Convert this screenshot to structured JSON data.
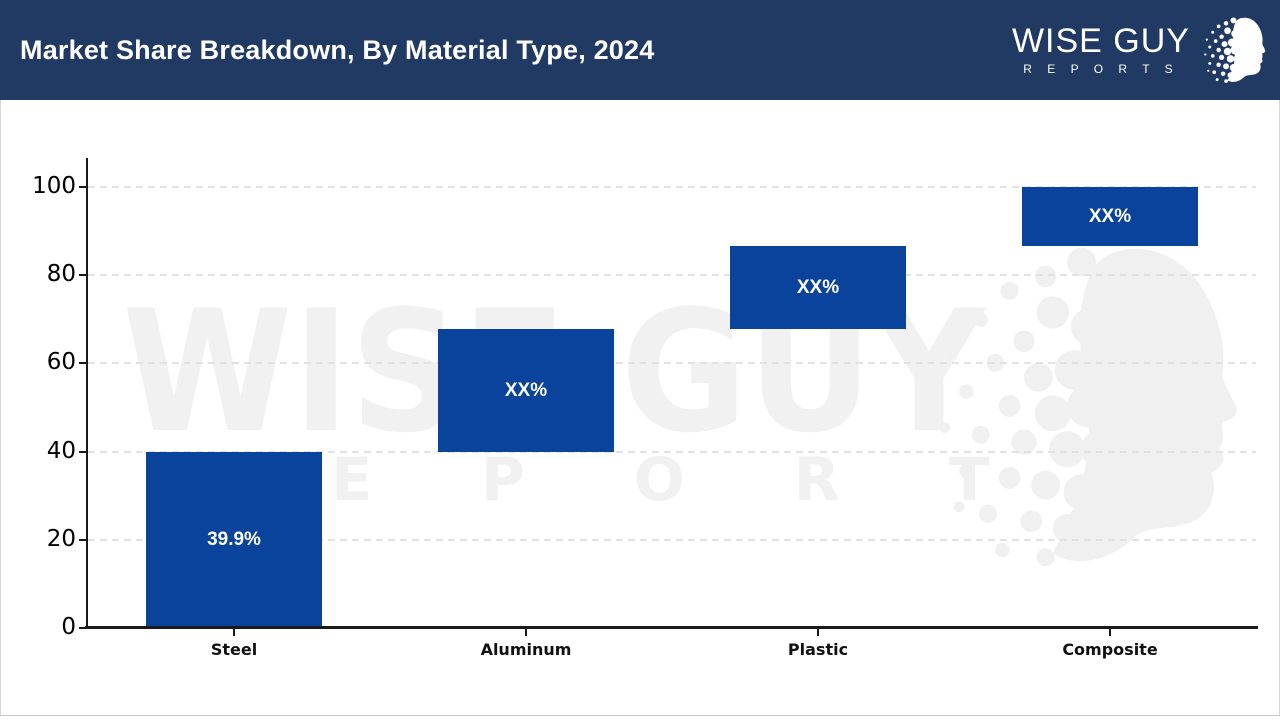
{
  "header": {
    "title": "Market Share Breakdown, By Material Type, 2024"
  },
  "logo": {
    "name": "WISE GUY",
    "subname": "R E P O R T S"
  },
  "watermark": {
    "line1": "WISE GUY",
    "line2": "R E P O R T S"
  },
  "colors": {
    "header_bg": "#203a64",
    "bar": "#09439b",
    "grid": "#e2e2e2",
    "axis": "#1a1a1a",
    "tick_label": "#000000",
    "bar_label": "#ffffff",
    "watermark": "#f1f1f1"
  },
  "chart_data": {
    "type": "bar",
    "subtype": "waterfall-stacked",
    "title": "Market Share Breakdown, By Material Type, 2024",
    "categories": [
      "Steel",
      "Aluminum",
      "Plastic",
      "Composite"
    ],
    "segments": [
      {
        "category": "Steel",
        "start": 0,
        "end": 39.9,
        "label": "39.9%"
      },
      {
        "category": "Aluminum",
        "start": 39.9,
        "end": 67.8,
        "label": "XX%"
      },
      {
        "category": "Plastic",
        "start": 67.8,
        "end": 86.6,
        "label": "XX%"
      },
      {
        "category": "Composite",
        "start": 86.6,
        "end": 100,
        "label": "XX%"
      }
    ],
    "yticks": [
      0,
      20,
      40,
      60,
      80,
      100
    ],
    "ylim": [
      0,
      100
    ],
    "xlabel": "",
    "ylabel": "",
    "grid": "horizontal-dashed",
    "legend_position": "none"
  }
}
